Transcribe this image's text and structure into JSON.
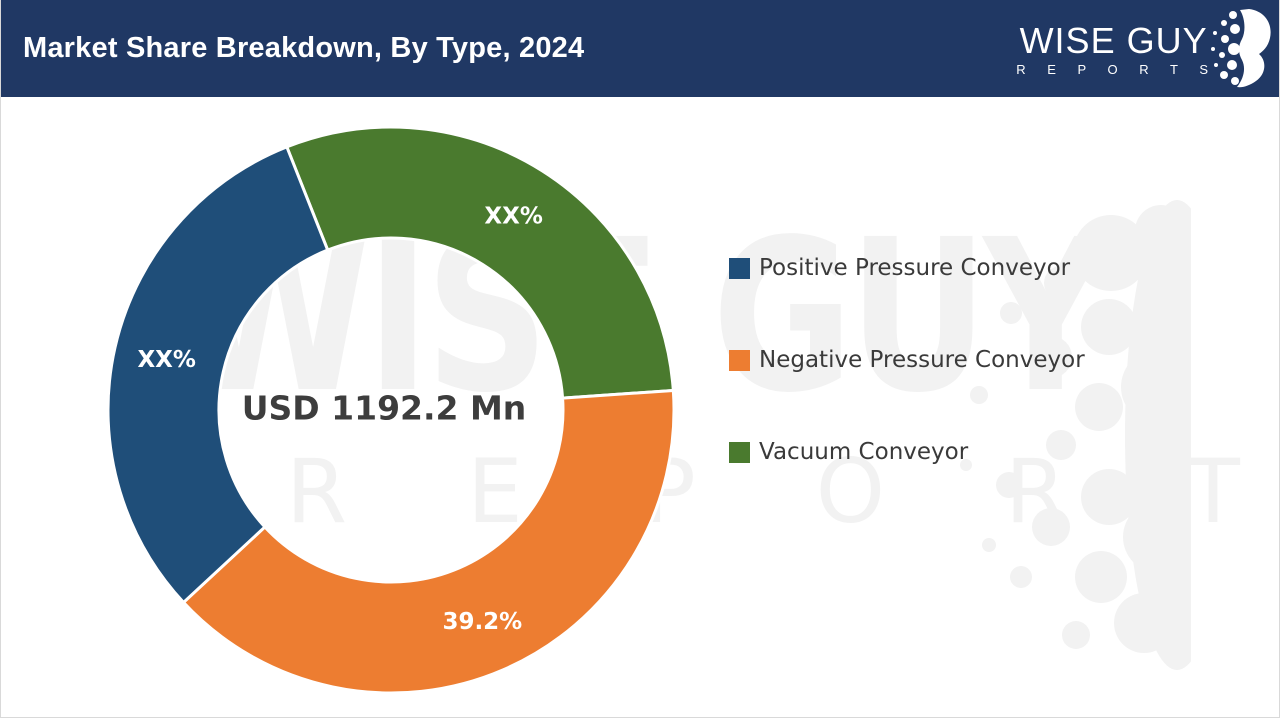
{
  "header": {
    "title": "Market Share Breakdown, By Type, 2024",
    "logo": {
      "line1": "WISE GUY",
      "line2": "R E P O R T S"
    }
  },
  "watermark": {
    "line1": "WISE GUY",
    "line2": "R E P O R T S"
  },
  "colors": {
    "header_bg": "#203864",
    "card_border": "#d9d9d9",
    "positive_pressure_blue": "#1f4e79",
    "negative_pressure_orange": "#ed7d31",
    "vacuum_green": "#4a7a2e",
    "center_text": "#3d3d3d",
    "legend_text": "#3a3a3a",
    "watermark_gray": "#f2f2f2"
  },
  "chart_data": {
    "type": "pie",
    "subtype": "donut",
    "title": "Market Share Breakdown, By Type, 2024",
    "center_label": "USD 1192.2 Mn",
    "units": "percent market share",
    "start_angle_deg_clockwise_from_top": -21.6,
    "legend_position": "right",
    "segments": [
      {
        "name": "Vacuum Conveyor",
        "label": "XX%",
        "value": 29.9,
        "color": "#4a7a2e"
      },
      {
        "name": "Negative Pressure Conveyor",
        "label": "39.2%",
        "value": 39.2,
        "color": "#ed7d31"
      },
      {
        "name": "Positive Pressure Conveyor",
        "label": "XX%",
        "value": 30.9,
        "color": "#1f4e79"
      }
    ],
    "legend_order_by_segment_index": [
      2,
      1,
      0
    ]
  }
}
